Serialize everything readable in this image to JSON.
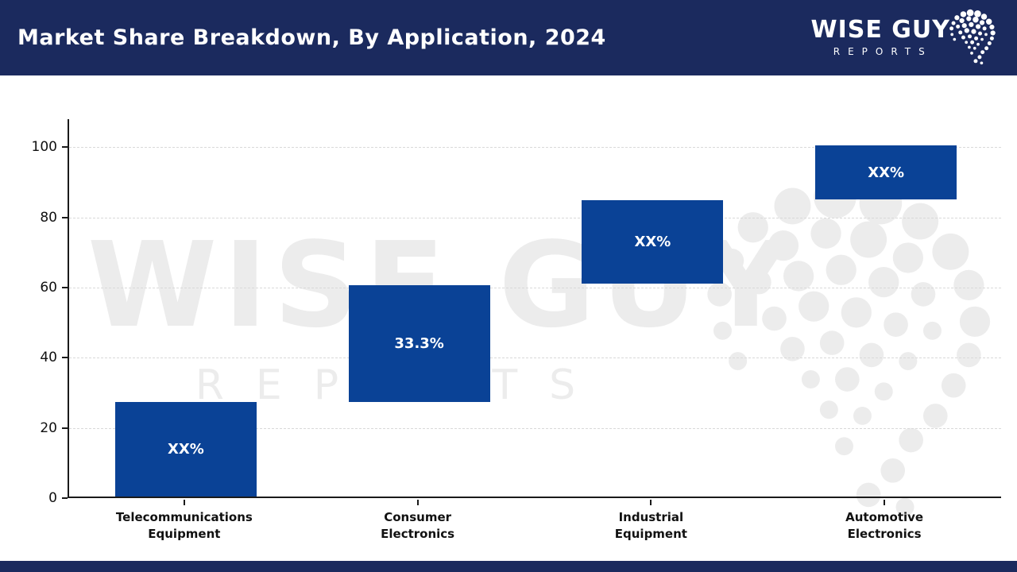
{
  "header": {
    "title": "Market Share Breakdown, By Application, 2024",
    "logo": {
      "line1": "WISE GUY",
      "line2": "REPORTS"
    }
  },
  "watermark": {
    "line1": "WISE GUY",
    "line2": "REPORTS"
  },
  "chart_data": {
    "type": "bar",
    "subtype": "floating-waterfall",
    "title": "Market Share Breakdown, By Application, 2024",
    "categories": [
      "Telecommunications Equipment",
      "Consumer Electronics",
      "Industrial Equipment",
      "Automotive Electronics"
    ],
    "categories_display": [
      "Telecommunications\nEquipment",
      "Consumer\nElectronics",
      "Industrial\nEquipment",
      "Automotive\nElectronics"
    ],
    "bars": [
      {
        "category": "Telecommunications Equipment",
        "start": 0,
        "end": 27,
        "value": 27,
        "value_label": "XX%"
      },
      {
        "category": "Consumer Electronics",
        "start": 27,
        "end": 60.3,
        "value": 33.3,
        "value_label": "33.3%"
      },
      {
        "category": "Industrial Equipment",
        "start": 60.6,
        "end": 84.4,
        "value": 23.8,
        "value_label": "XX%"
      },
      {
        "category": "Automotive Electronics",
        "start": 84.7,
        "end": 100,
        "value": 15.3,
        "value_label": "XX%"
      }
    ],
    "yticks": [
      0,
      20,
      40,
      60,
      80,
      100
    ],
    "ylim": [
      0,
      108
    ],
    "xlabel": "",
    "ylabel": "",
    "grid": "horizontal-dashed",
    "legend": "none",
    "bar_color": "#0a4296",
    "bar_label_color": "#ffffff"
  },
  "colors": {
    "header_background": "#1b2a5e",
    "footer_background": "#1b2a5e",
    "bar": "#0a4296",
    "watermark": "#ececec",
    "axis": "#1a1a1a",
    "gridline": "#d9d9d9"
  }
}
